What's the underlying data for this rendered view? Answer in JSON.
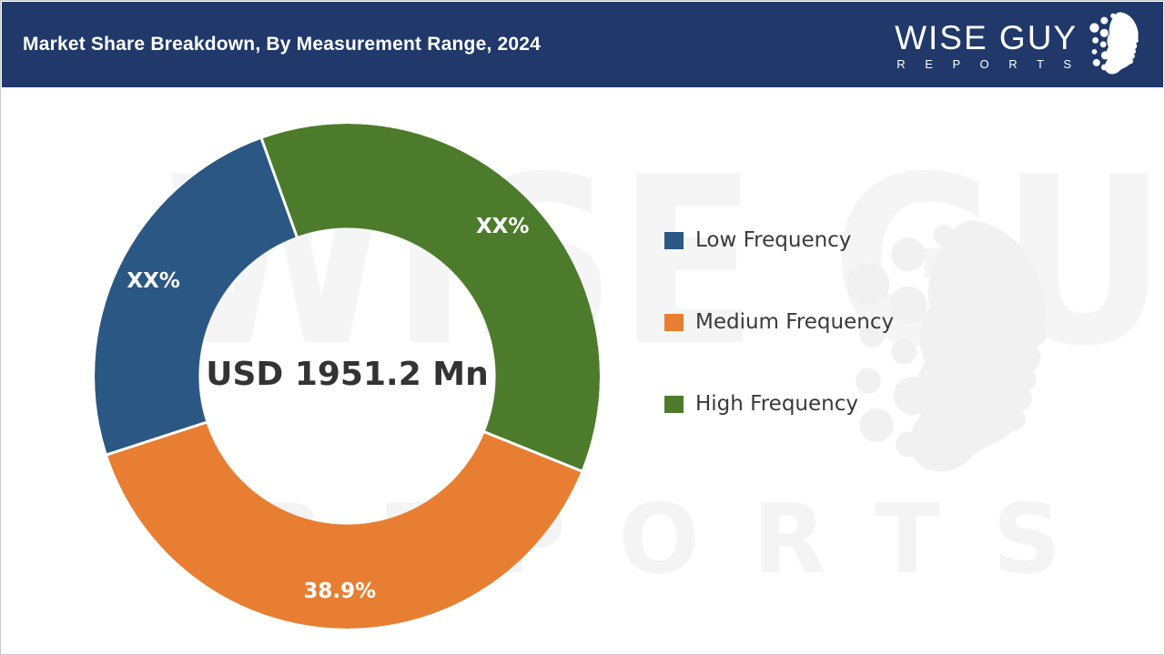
{
  "header": {
    "title": "Market Share Breakdown, By Measurement Range, 2024",
    "logo": {
      "line1": "WISE GUY",
      "line2": "R E P O R T S"
    }
  },
  "watermark": {
    "line1": "WISE GUY",
    "line2": "REPORTS"
  },
  "chart_data": {
    "type": "pie",
    "subtype": "donut",
    "title": "Market Share Breakdown, By Measurement Range, 2024",
    "center_label": "USD 1951.2 Mn",
    "start_bearing_deg": -19.8,
    "segments": [
      {
        "name": "High Frequency",
        "percent": 36.6,
        "display_label": "XX%",
        "color": "#4c7c2b"
      },
      {
        "name": "Medium Frequency",
        "percent": 38.9,
        "display_label": "38.9%",
        "color": "#e87e31"
      },
      {
        "name": "Low Frequency",
        "percent": 24.5,
        "display_label": "XX%",
        "color": "#2a5783"
      }
    ],
    "legend": [
      {
        "label": "Low Frequency",
        "color": "#2a5783"
      },
      {
        "label": "Medium Frequency",
        "color": "#e87e31"
      },
      {
        "label": "High Frequency",
        "color": "#4c7c2b"
      }
    ],
    "legend_position": "right",
    "colors": {
      "header_bar": "#20386a",
      "center_text": "#333333"
    }
  }
}
